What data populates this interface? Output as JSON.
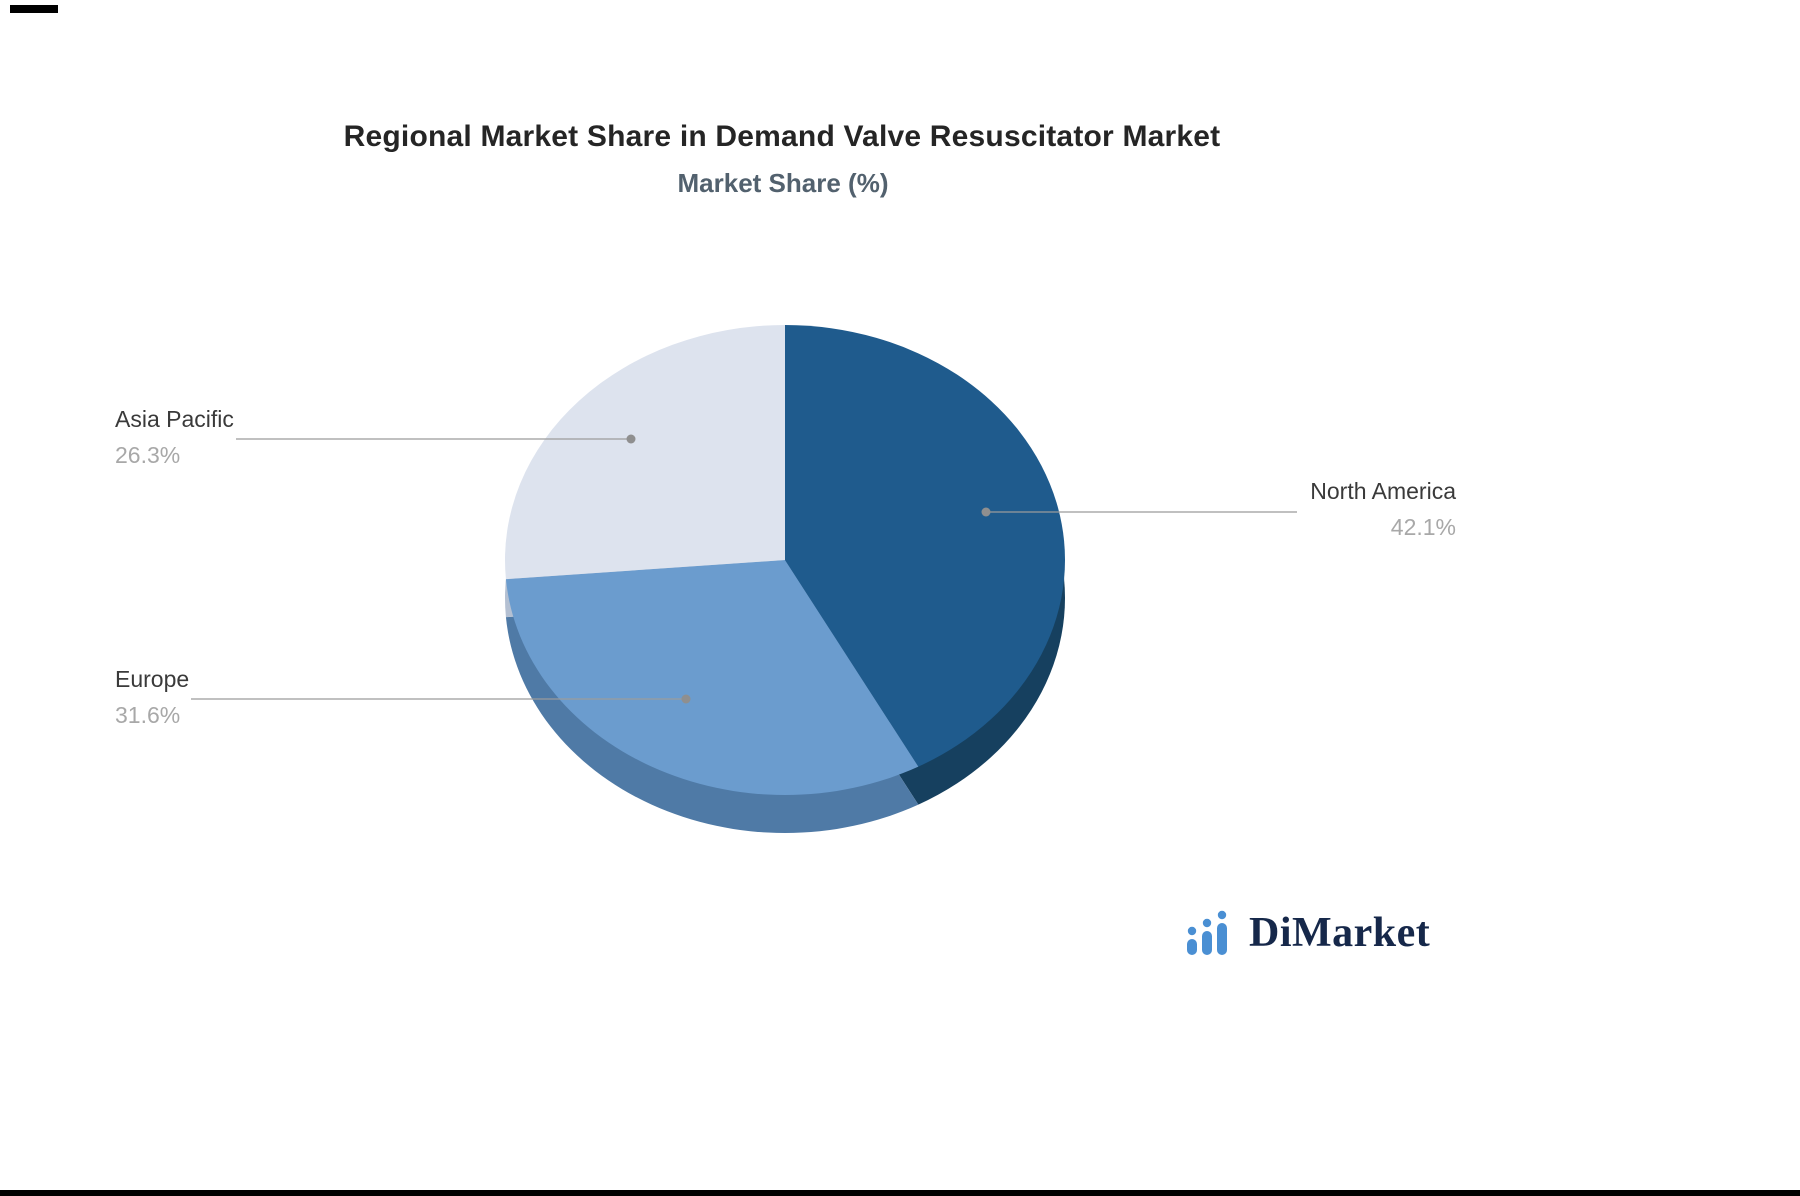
{
  "title": "Regional Market Share in Demand Valve Resuscitator Market",
  "subtitle": "Market Share (%)",
  "chart_data": {
    "type": "pie",
    "title": "Regional Market Share in Demand Valve Resuscitator Market",
    "subtitle": "Market Share (%)",
    "unit": "%",
    "direction": "clockwise",
    "start_angle_deg": 0,
    "legend_position": "none",
    "label_style": "leader-lines",
    "effect": "3d-depth",
    "slices": [
      {
        "label": "North America",
        "value": 42.1,
        "display": "42.1%",
        "color": "#1f5b8d",
        "depth_color": "#16405f"
      },
      {
        "label": "Europe",
        "value": 31.6,
        "display": "31.6%",
        "color": "#6b9cce",
        "depth_color": "#4f7aa6"
      },
      {
        "label": "Asia Pacific",
        "value": 26.3,
        "display": "26.3%",
        "color": "#dde3ee",
        "depth_color": "#b4c0d2"
      }
    ]
  },
  "branding": {
    "logo_text": "DiMarket",
    "logo_icon": "bar-chart-icon",
    "icon_color": "#4a8fd3",
    "text_color": "#16284a"
  }
}
